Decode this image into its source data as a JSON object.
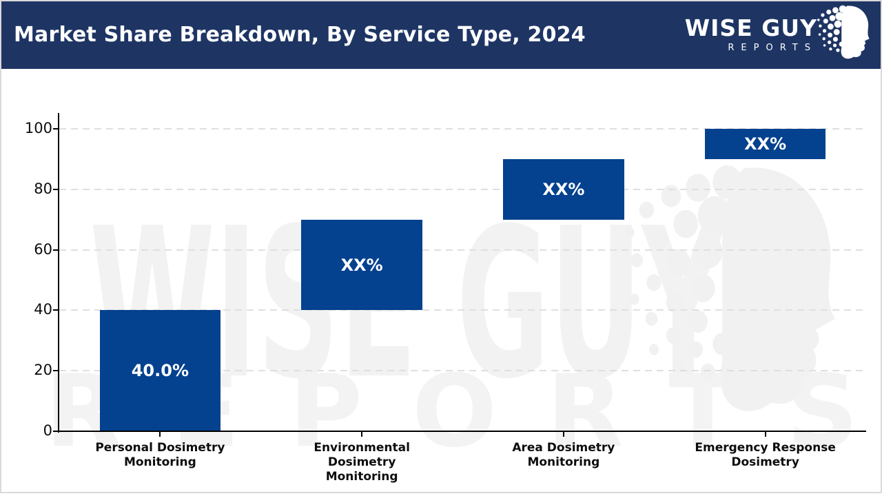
{
  "header": {
    "title": "Market Share Breakdown, By Service Type, 2024",
    "logo": {
      "brand_top": "WISE GUY",
      "brand_bottom": "REPORTS"
    }
  },
  "watermark": {
    "line1": "WISE GUY",
    "line2": "REPORTS"
  },
  "colors": {
    "header_bg": "#1e3564",
    "bar": "#04418f",
    "bar_label_text": "#ffffff",
    "gridline": "#dfdfdf",
    "axis": "#000000",
    "watermark": "#f2f2f2"
  },
  "chart_data": {
    "type": "bar",
    "subtype": "waterfall",
    "title": "Market Share Breakdown, By Service Type, 2024",
    "xlabel": "",
    "ylabel": "",
    "categories": [
      "Personal Dosimetry Monitoring",
      "Environmental Dosimetry Monitoring",
      "Area Dosimetry Monitoring",
      "Emergency Response Dosimetry"
    ],
    "bars": [
      {
        "category_lines": [
          "Personal Dosimetry",
          "Monitoring"
        ],
        "start": 0,
        "end": 40,
        "value": 40.0,
        "value_label": "40.0%"
      },
      {
        "category_lines": [
          "Environmental",
          "Dosimetry",
          "Monitoring"
        ],
        "start": 40,
        "end": 70,
        "value": 30,
        "value_label": "XX%"
      },
      {
        "category_lines": [
          "Area Dosimetry",
          "Monitoring"
        ],
        "start": 70,
        "end": 90,
        "value": 20,
        "value_label": "XX%"
      },
      {
        "category_lines": [
          "Emergency Response",
          "Dosimetry"
        ],
        "start": 90,
        "end": 100,
        "value": 10,
        "value_label": "XX%"
      }
    ],
    "y_ticks": [
      0,
      20,
      40,
      60,
      80,
      100
    ],
    "ylim": [
      0,
      105
    ],
    "grid": "horizontal-dashed",
    "legend": "none"
  }
}
